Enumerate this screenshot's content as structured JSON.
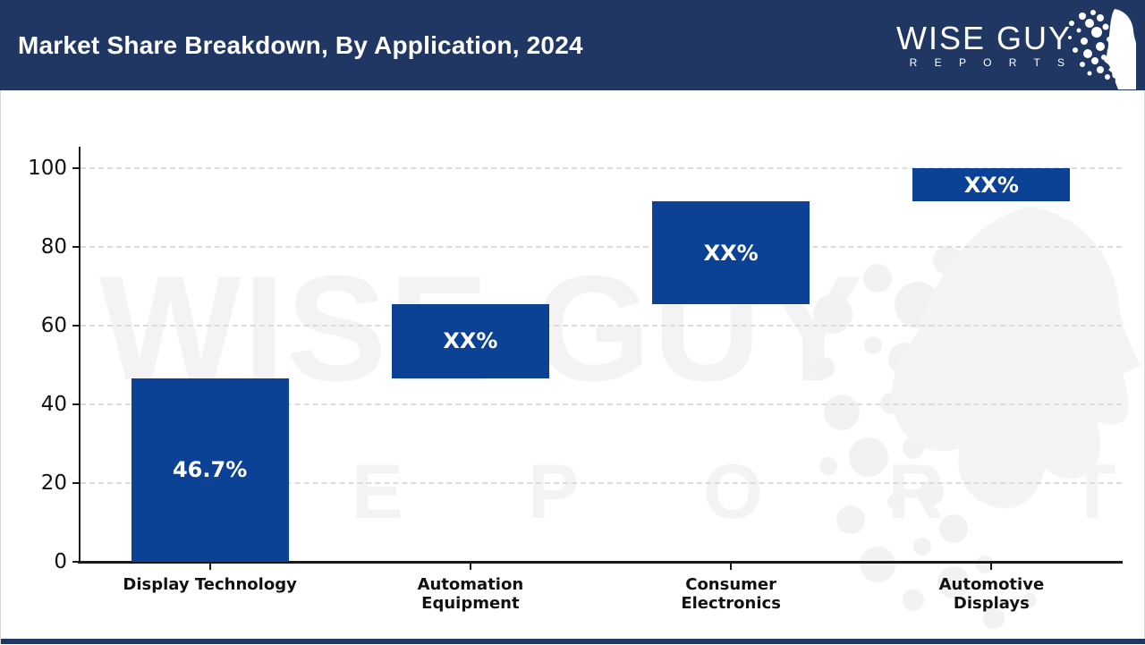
{
  "header": {
    "title": "Market Share Breakdown, By Application, 2024",
    "logo": {
      "name_line": "WISE GUY",
      "sub_line": "R E P O R T S"
    }
  },
  "watermark": {
    "name_line": "WISE GUY",
    "sub_line": "R E P O R T S"
  },
  "chart_data": {
    "type": "bar",
    "subtype": "waterfall",
    "title": "Market Share Breakdown, By Application, 2024",
    "categories": [
      "Display Technology",
      "Automation\nEquipment",
      "Consumer\nElectronics",
      "Automotive\nDisplays"
    ],
    "segments": [
      {
        "category": "Display Technology",
        "start": 0,
        "end": 46.7,
        "label": "46.7%"
      },
      {
        "category": "Automation Equipment",
        "start": 46.7,
        "end": 65.5,
        "label": "XX%"
      },
      {
        "category": "Consumer Electronics",
        "start": 65.5,
        "end": 91.5,
        "label": "XX%"
      },
      {
        "category": "Automotive Displays",
        "start": 91.5,
        "end": 100,
        "label": "XX%"
      }
    ],
    "xlabel": "",
    "ylabel": "",
    "ylim": [
      0,
      105
    ],
    "yticks": [
      0,
      20,
      40,
      60,
      80,
      100
    ],
    "grid": "horizontal-dashed",
    "legend": "none",
    "bar_color": "#0b4296",
    "bar_label_color": "#ffffff"
  },
  "colors": {
    "header_bg": "#213763",
    "footer_bg": "#213763",
    "bar": "#0b4296",
    "grid": "#dcdcdc",
    "axis": "#1a1a1a",
    "watermark": "#f3f3f3"
  }
}
